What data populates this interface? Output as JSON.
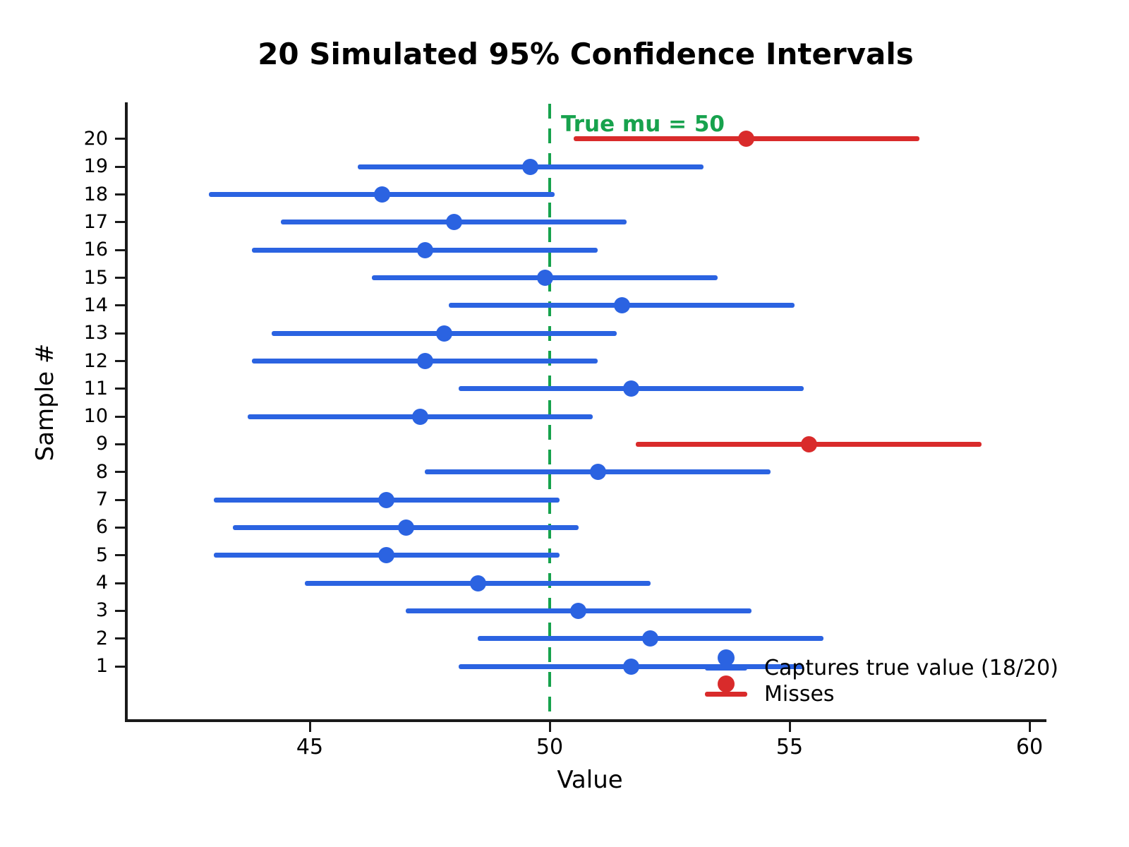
{
  "title": "20 Simulated 95% Confidence Intervals",
  "x_axis": {
    "label": "Value",
    "ticks": [
      45,
      50,
      55,
      60
    ],
    "range": [
      41.2,
      60.3
    ]
  },
  "y_axis": {
    "label": "Sample #",
    "ticks": [
      1,
      2,
      3,
      4,
      5,
      6,
      7,
      8,
      9,
      10,
      11,
      12,
      13,
      14,
      15,
      16,
      17,
      18,
      19,
      20
    ]
  },
  "true_mu": {
    "value": 50,
    "label": "True mu = 50"
  },
  "legend": {
    "items": [
      {
        "label": "Captures true value (18/20)",
        "color_key": "captures"
      },
      {
        "label": "Misses",
        "color_key": "miss"
      }
    ]
  },
  "colors": {
    "captures": "#2B63E1",
    "miss": "#D92B2B",
    "true_mu": "#17A24D",
    "axis": "#1a1a1a"
  },
  "chart_data": {
    "type": "scatter",
    "subtype": "horizontal-errorbar",
    "title": "20 Simulated 95% Confidence Intervals",
    "xlabel": "Value",
    "ylabel": "Sample #",
    "xlim": [
      41.2,
      60.3
    ],
    "true_mu": 50,
    "captures_count": "18/20",
    "samples": [
      {
        "sample": 1,
        "mean": 51.7,
        "lo": 48.1,
        "hi": 55.3,
        "captures": true
      },
      {
        "sample": 2,
        "mean": 52.1,
        "lo": 48.5,
        "hi": 55.7,
        "captures": true
      },
      {
        "sample": 3,
        "mean": 50.6,
        "lo": 47.0,
        "hi": 54.2,
        "captures": true
      },
      {
        "sample": 4,
        "mean": 48.5,
        "lo": 44.9,
        "hi": 52.1,
        "captures": true
      },
      {
        "sample": 5,
        "mean": 46.6,
        "lo": 43.0,
        "hi": 50.2,
        "captures": true
      },
      {
        "sample": 6,
        "mean": 47.0,
        "lo": 43.4,
        "hi": 50.6,
        "captures": true
      },
      {
        "sample": 7,
        "mean": 46.6,
        "lo": 43.0,
        "hi": 50.2,
        "captures": true
      },
      {
        "sample": 8,
        "mean": 51.0,
        "lo": 47.4,
        "hi": 54.6,
        "captures": true
      },
      {
        "sample": 9,
        "mean": 55.4,
        "lo": 51.8,
        "hi": 59.0,
        "captures": false
      },
      {
        "sample": 10,
        "mean": 47.3,
        "lo": 43.7,
        "hi": 50.9,
        "captures": true
      },
      {
        "sample": 11,
        "mean": 51.7,
        "lo": 48.1,
        "hi": 55.3,
        "captures": true
      },
      {
        "sample": 12,
        "mean": 47.4,
        "lo": 43.8,
        "hi": 51.0,
        "captures": true
      },
      {
        "sample": 13,
        "mean": 47.8,
        "lo": 44.2,
        "hi": 51.4,
        "captures": true
      },
      {
        "sample": 14,
        "mean": 51.5,
        "lo": 47.9,
        "hi": 55.1,
        "captures": true
      },
      {
        "sample": 15,
        "mean": 49.9,
        "lo": 46.3,
        "hi": 53.5,
        "captures": true
      },
      {
        "sample": 16,
        "mean": 47.4,
        "lo": 43.8,
        "hi": 51.0,
        "captures": true
      },
      {
        "sample": 17,
        "mean": 48.0,
        "lo": 44.4,
        "hi": 51.6,
        "captures": true
      },
      {
        "sample": 18,
        "mean": 46.5,
        "lo": 42.9,
        "hi": 50.1,
        "captures": true
      },
      {
        "sample": 19,
        "mean": 49.6,
        "lo": 46.0,
        "hi": 53.2,
        "captures": true
      },
      {
        "sample": 20,
        "mean": 54.1,
        "lo": 50.5,
        "hi": 57.7,
        "captures": false
      }
    ]
  }
}
